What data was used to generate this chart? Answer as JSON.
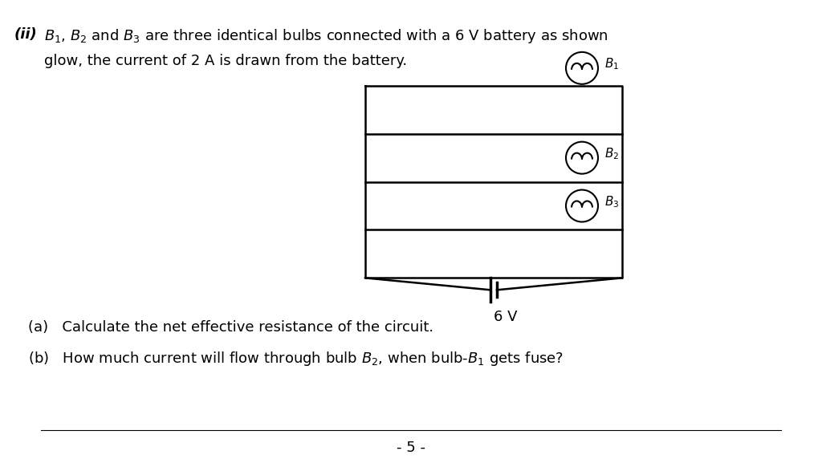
{
  "background_color": "#ffffff",
  "title_ii": "(ii)",
  "title_text": "B₁, B₂ and B₃ are three identical bulbs connected with a 6 V battery as shown",
  "subtitle_text": "glow, the current of 2 A is drawn from the battery.",
  "question_a": "(a)   Calculate the net effective resistance of the circuit.",
  "question_b": "(b)   How much current will flow through bulb B₂, when bulb-B₁ gets fuse?",
  "footer": "- 5 -",
  "battery_label": "6 V",
  "bulb_labels": [
    "B₁",
    "B₂",
    "B₃"
  ],
  "line_color": "#000000",
  "text_color": "#000000",
  "font_size_main": 13,
  "font_size_small": 11
}
